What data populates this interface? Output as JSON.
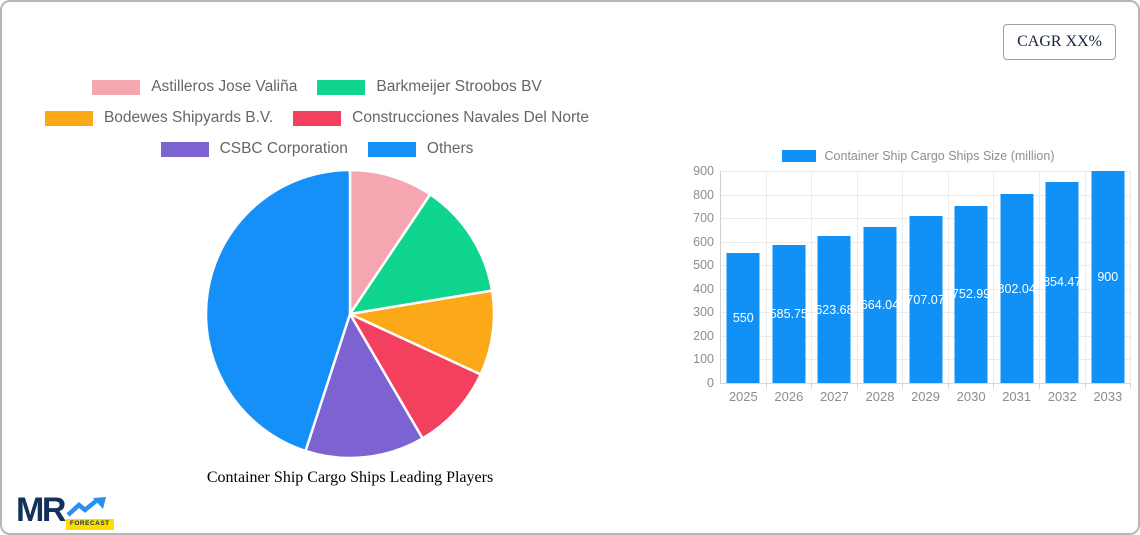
{
  "badge": {
    "label": "CAGR XX%"
  },
  "logo": {
    "text": "MR",
    "badge": "FORECAST"
  },
  "chart_data": [
    {
      "type": "pie",
      "title": "Container Ship Cargo Ships Leading Players",
      "labels": [
        "Astilleros Jose Valiña",
        "Barkmeijer Stroobos BV",
        "Bodewes Shipyards B.V.",
        "Construcciones Navales Del Norte",
        "CSBC Corporation",
        "Others"
      ],
      "values_percent": [
        9.4,
        13.0,
        9.5,
        9.7,
        13.4,
        45.0
      ],
      "colors": [
        "#f5a6b0",
        "#0fd58e",
        "#fba919",
        "#f4405f",
        "#7d63d2",
        "#1590f8"
      ],
      "legend_rows": [
        [
          0,
          1
        ],
        [
          2,
          3
        ],
        [
          4,
          5
        ]
      ],
      "legend_position": "top",
      "start_angle_deg": 0,
      "direction": "clockwise",
      "slice_gap_color": "#ffffff"
    },
    {
      "type": "bar",
      "series_label": "Container Ship Cargo Ships Size (million)",
      "categories": [
        "2025",
        "2026",
        "2027",
        "2028",
        "2029",
        "2030",
        "2031",
        "2032",
        "2033"
      ],
      "values": [
        550,
        585.75,
        623.68,
        664.04,
        707.07,
        752.99,
        802.04,
        854.47,
        900
      ],
      "value_labels": [
        "550",
        "585.75",
        "623.68",
        "664.04",
        "707.07",
        "752.99",
        "802.04",
        "854.47",
        "900"
      ],
      "bar_color": "#1191f5",
      "ylim": [
        0,
        900
      ],
      "ytick_step": 100,
      "yticks": [
        "0",
        "100",
        "200",
        "300",
        "400",
        "500",
        "600",
        "700",
        "800",
        "900"
      ],
      "grid": true,
      "legend_position": "top"
    }
  ]
}
